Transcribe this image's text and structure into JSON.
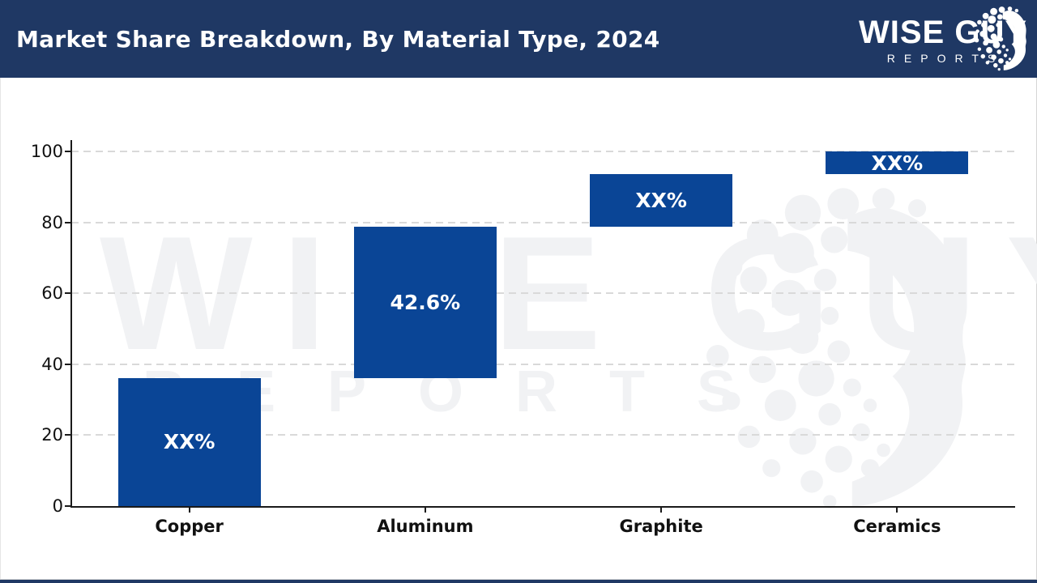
{
  "header": {
    "title": "Market Share Breakdown, By Material Type, 2024",
    "logo": {
      "wordmark": "WISE GUY",
      "subtext": "REPORTS"
    },
    "bg_color": "#1f3864"
  },
  "watermark": {
    "line1": "WISE GUY",
    "line2": "REPORTS"
  },
  "chart_data": {
    "type": "bar",
    "subtype": "waterfall",
    "title": "Market Share Breakdown, By Material Type, 2024",
    "categories": [
      "Copper",
      "Aluminum",
      "Graphite",
      "Ceramics"
    ],
    "bars": [
      {
        "category": "Copper",
        "start": 0,
        "end": 36.1,
        "value": 36.1,
        "label": "XX%"
      },
      {
        "category": "Aluminum",
        "start": 36.1,
        "end": 78.7,
        "value": 42.6,
        "label": "42.6%"
      },
      {
        "category": "Graphite",
        "start": 78.7,
        "end": 93.5,
        "value": 14.8,
        "label": "XX%"
      },
      {
        "category": "Ceramics",
        "start": 93.5,
        "end": 100,
        "value": 6.5,
        "label": "XX%"
      }
    ],
    "yticks": [
      0,
      20,
      40,
      60,
      80,
      100
    ],
    "ylim": [
      0,
      103
    ],
    "xlabel": "",
    "ylabel": "",
    "grid": "horizontal-dashed",
    "legend": "none",
    "bar_color": "#0a4596",
    "label_color": "#ffffff",
    "axis_color": "#1a1a1a",
    "gridline_color": "#d9d9d9"
  },
  "footer": {
    "bar_color": "#1f3864"
  }
}
